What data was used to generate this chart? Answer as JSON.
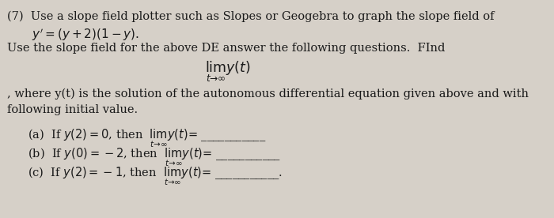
{
  "bg_color": "#d6d0c8",
  "text_color": "#1a1a1a",
  "figsize": [
    7.0,
    2.76
  ],
  "dpi": 100,
  "line1": "(7)  Use a slope field plotter such as Slopes or Geogebra to graph the slope field of",
  "line2_italic": "y′ = (y + 2)(1 − y).",
  "line3": "Use the slope field for the above DE answer the following questions.  FInd",
  "lim_main": "lim y(t)",
  "lim_sub": "t→∞",
  "line5": ", where y(t) is the solution of the autonomous differential equation given above and with",
  "line6": "following initial value.",
  "part_a": "(a)  If y(2) = 0, then  lim y(t) = ___________",
  "part_a_sub": "t→∞",
  "part_b": "(b)  If y(0) = −2, then  lim y(t) = ___________",
  "part_b_sub": "t→∞",
  "part_c": "(c)  If y(2) = −1, then  lim y(t) = ___________.",
  "part_c_sub": "t→∞"
}
